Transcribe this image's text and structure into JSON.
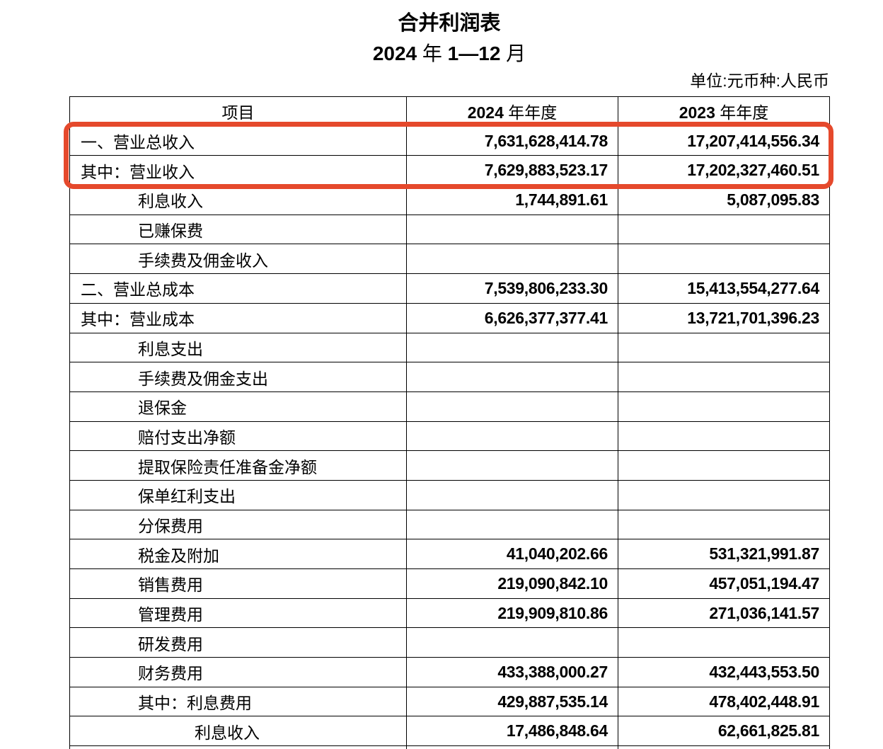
{
  "page": {
    "title": "合并利润表",
    "subtitle_parts": [
      {
        "text": "2024",
        "bold": true
      },
      {
        "text": " 年 ",
        "bold": false
      },
      {
        "text": "1—12",
        "bold": true
      },
      {
        "text": " 月",
        "bold": false
      }
    ],
    "unit_note": "单位:元币种:人民币"
  },
  "table": {
    "headers": {
      "item": "项目",
      "year_2024": {
        "num": "2024",
        "suffix": " 年年度"
      },
      "year_2023": {
        "num": "2023",
        "suffix": " 年年度"
      }
    },
    "rows": [
      {
        "label": "一、营业总收入",
        "indent": 0,
        "v2024": "7,631,628,414.78",
        "v2023": "17,207,414,556.34",
        "highlighted": true
      },
      {
        "label": "其中：营业收入",
        "indent": 0,
        "v2024": "7,629,883,523.17",
        "v2023": "17,202,327,460.51",
        "highlighted": true
      },
      {
        "label": "利息收入",
        "indent": 1,
        "v2024": "1,744,891.61",
        "v2023": "5,087,095.83",
        "highlighted": false
      },
      {
        "label": "已赚保费",
        "indent": 1,
        "v2024": "",
        "v2023": "",
        "highlighted": false
      },
      {
        "label": "手续费及佣金收入",
        "indent": 1,
        "v2024": "",
        "v2023": "",
        "highlighted": false
      },
      {
        "label": "二、营业总成本",
        "indent": 0,
        "v2024": "7,539,806,233.30",
        "v2023": "15,413,554,277.64",
        "highlighted": false
      },
      {
        "label": "其中：营业成本",
        "indent": 0,
        "v2024": "6,626,377,377.41",
        "v2023": "13,721,701,396.23",
        "highlighted": false
      },
      {
        "label": "利息支出",
        "indent": 1,
        "v2024": "",
        "v2023": "",
        "highlighted": false
      },
      {
        "label": "手续费及佣金支出",
        "indent": 1,
        "v2024": "",
        "v2023": "",
        "highlighted": false
      },
      {
        "label": "退保金",
        "indent": 1,
        "v2024": "",
        "v2023": "",
        "highlighted": false
      },
      {
        "label": "赔付支出净额",
        "indent": 1,
        "v2024": "",
        "v2023": "",
        "highlighted": false
      },
      {
        "label": "提取保险责任准备金净额",
        "indent": 1,
        "v2024": "",
        "v2023": "",
        "highlighted": false
      },
      {
        "label": "保单红利支出",
        "indent": 1,
        "v2024": "",
        "v2023": "",
        "highlighted": false
      },
      {
        "label": "分保费用",
        "indent": 1,
        "v2024": "",
        "v2023": "",
        "highlighted": false
      },
      {
        "label": "税金及附加",
        "indent": 1,
        "v2024": "41,040,202.66",
        "v2023": "531,321,991.87",
        "highlighted": false
      },
      {
        "label": "销售费用",
        "indent": 1,
        "v2024": "219,090,842.10",
        "v2023": "457,051,194.47",
        "highlighted": false
      },
      {
        "label": "管理费用",
        "indent": 1,
        "v2024": "219,909,810.86",
        "v2023": "271,036,141.57",
        "highlighted": false
      },
      {
        "label": "研发费用",
        "indent": 1,
        "v2024": "",
        "v2023": "",
        "highlighted": false
      },
      {
        "label": "财务费用",
        "indent": 1,
        "v2024": "433,388,000.27",
        "v2023": "432,443,553.50",
        "highlighted": false
      },
      {
        "label": "其中：利息费用",
        "indent": 1,
        "v2024": "429,887,535.14",
        "v2023": "478,402,448.91",
        "highlighted": false
      },
      {
        "label": "利息收入",
        "indent": 2,
        "v2024": "17,486,848.64",
        "v2023": "62,661,825.81",
        "highlighted": false
      }
    ]
  },
  "highlight": {
    "color": "#e5492c",
    "highlighted_row_indexes": [
      0,
      1
    ]
  }
}
